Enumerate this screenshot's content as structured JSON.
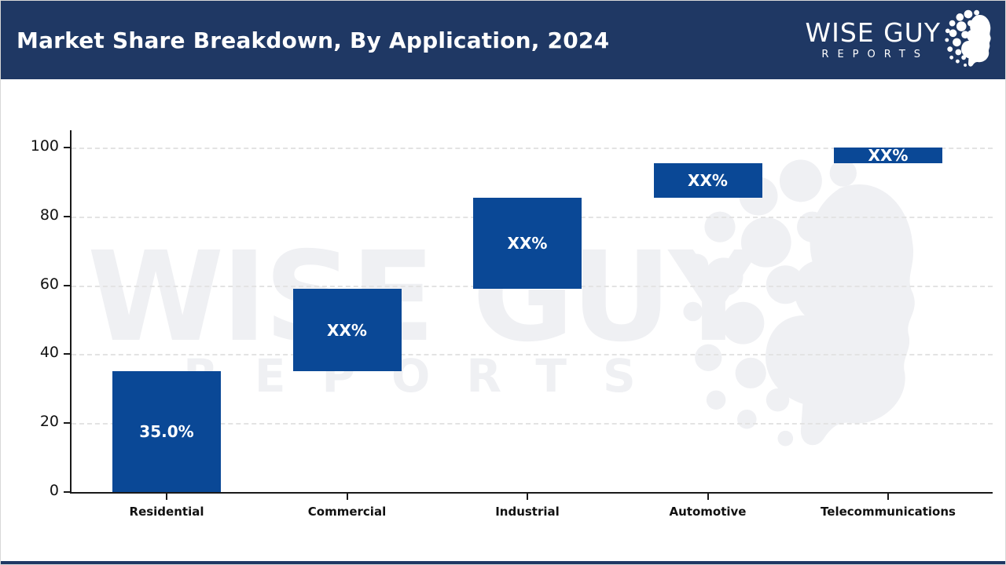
{
  "header": {
    "title": "Market Share Breakdown, By Application, 2024",
    "logo": {
      "line1": "WISE GUY",
      "line2": "REPORTS"
    }
  },
  "watermark": {
    "line1": "WISE GUY",
    "line2": "REPORTS"
  },
  "colors": {
    "header_bg": "#1f3864",
    "bar": "#0a4896",
    "grid": "#e3e3e3",
    "watermark": "#eff0f3",
    "bar_label": "#ffffff"
  },
  "chart_data": {
    "type": "bar",
    "subtype": "waterfall",
    "title": "Market Share Breakdown, By Application, 2024",
    "categories": [
      "Residential",
      "Commercial",
      "Industrial",
      "Automotive",
      "Telecommunications"
    ],
    "series": [
      {
        "name": "Market Share (%)",
        "segments": [
          {
            "category": "Residential",
            "start": 0,
            "end": 35,
            "value": 35.0,
            "label": "35.0%"
          },
          {
            "category": "Commercial",
            "start": 35,
            "end": 59,
            "value": 24.0,
            "label": "XX%"
          },
          {
            "category": "Industrial",
            "start": 59,
            "end": 85.5,
            "value": 26.5,
            "label": "XX%"
          },
          {
            "category": "Automotive",
            "start": 85.5,
            "end": 95.5,
            "value": 10.0,
            "label": "XX%"
          },
          {
            "category": "Telecommunications",
            "start": 95.5,
            "end": 100,
            "value": 4.5,
            "label": "XX%"
          }
        ]
      }
    ],
    "xlabel": "",
    "ylabel": "",
    "ylim": [
      0,
      100
    ],
    "yticks": [
      0,
      20,
      40,
      60,
      80,
      100
    ],
    "grid": "horizontal-dashed",
    "legend_position": "none"
  }
}
